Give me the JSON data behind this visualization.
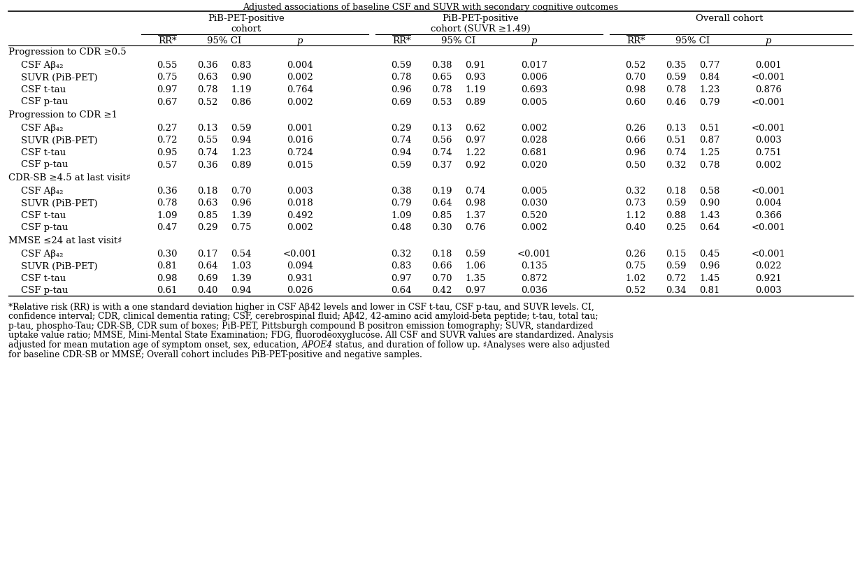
{
  "title": "Adjusted associations of baseline CSF and SUVR with secondary cognitive outcomes",
  "sections": [
    {
      "header": "Progression to CDR ≥0.5",
      "rows": [
        {
          "label": "CSF Aβ₄₂",
          "data": [
            "0.55",
            "0.36",
            "0.83",
            "0.004",
            "0.59",
            "0.38",
            "0.91",
            "0.017",
            "0.52",
            "0.35",
            "0.77",
            "0.001"
          ]
        },
        {
          "label": "SUVR (PiB-PET)",
          "data": [
            "0.75",
            "0.63",
            "0.90",
            "0.002",
            "0.78",
            "0.65",
            "0.93",
            "0.006",
            "0.70",
            "0.59",
            "0.84",
            "<0.001"
          ]
        },
        {
          "label": "CSF t-tau",
          "data": [
            "0.97",
            "0.78",
            "1.19",
            "0.764",
            "0.96",
            "0.78",
            "1.19",
            "0.693",
            "0.98",
            "0.78",
            "1.23",
            "0.876"
          ]
        },
        {
          "label": "CSF p-tau",
          "data": [
            "0.67",
            "0.52",
            "0.86",
            "0.002",
            "0.69",
            "0.53",
            "0.89",
            "0.005",
            "0.60",
            "0.46",
            "0.79",
            "<0.001"
          ]
        }
      ]
    },
    {
      "header": "Progression to CDR ≥1",
      "rows": [
        {
          "label": "CSF Aβ₄₂",
          "data": [
            "0.27",
            "0.13",
            "0.59",
            "0.001",
            "0.29",
            "0.13",
            "0.62",
            "0.002",
            "0.26",
            "0.13",
            "0.51",
            "<0.001"
          ]
        },
        {
          "label": "SUVR (PiB-PET)",
          "data": [
            "0.72",
            "0.55",
            "0.94",
            "0.016",
            "0.74",
            "0.56",
            "0.97",
            "0.028",
            "0.66",
            "0.51",
            "0.87",
            "0.003"
          ]
        },
        {
          "label": "CSF t-tau",
          "data": [
            "0.95",
            "0.74",
            "1.23",
            "0.724",
            "0.94",
            "0.74",
            "1.22",
            "0.681",
            "0.96",
            "0.74",
            "1.25",
            "0.751"
          ]
        },
        {
          "label": "CSF p-tau",
          "data": [
            "0.57",
            "0.36",
            "0.89",
            "0.015",
            "0.59",
            "0.37",
            "0.92",
            "0.020",
            "0.50",
            "0.32",
            "0.78",
            "0.002"
          ]
        }
      ]
    },
    {
      "header": "CDR-SB ≥4.5 at last visit♯",
      "rows": [
        {
          "label": "CSF Aβ₄₂",
          "data": [
            "0.36",
            "0.18",
            "0.70",
            "0.003",
            "0.38",
            "0.19",
            "0.74",
            "0.005",
            "0.32",
            "0.18",
            "0.58",
            "<0.001"
          ]
        },
        {
          "label": "SUVR (PiB-PET)",
          "data": [
            "0.78",
            "0.63",
            "0.96",
            "0.018",
            "0.79",
            "0.64",
            "0.98",
            "0.030",
            "0.73",
            "0.59",
            "0.90",
            "0.004"
          ]
        },
        {
          "label": "CSF t-tau",
          "data": [
            "1.09",
            "0.85",
            "1.39",
            "0.492",
            "1.09",
            "0.85",
            "1.37",
            "0.520",
            "1.12",
            "0.88",
            "1.43",
            "0.366"
          ]
        },
        {
          "label": "CSF p-tau",
          "data": [
            "0.47",
            "0.29",
            "0.75",
            "0.002",
            "0.48",
            "0.30",
            "0.76",
            "0.002",
            "0.40",
            "0.25",
            "0.64",
            "<0.001"
          ]
        }
      ]
    },
    {
      "header": "MMSE ≤24 at last visit♯",
      "rows": [
        {
          "label": "CSF Aβ₄₂",
          "data": [
            "0.30",
            "0.17",
            "0.54",
            "<0.001",
            "0.32",
            "0.18",
            "0.59",
            "<0.001",
            "0.26",
            "0.15",
            "0.45",
            "<0.001"
          ]
        },
        {
          "label": "SUVR (PiB-PET)",
          "data": [
            "0.81",
            "0.64",
            "1.03",
            "0.094",
            "0.83",
            "0.66",
            "1.06",
            "0.135",
            "0.75",
            "0.59",
            "0.96",
            "0.022"
          ]
        },
        {
          "label": "CSF t-tau",
          "data": [
            "0.98",
            "0.69",
            "1.39",
            "0.931",
            "0.97",
            "0.70",
            "1.35",
            "0.872",
            "1.02",
            "0.72",
            "1.45",
            "0.921"
          ]
        },
        {
          "label": "CSF p-tau",
          "data": [
            "0.61",
            "0.40",
            "0.94",
            "0.026",
            "0.64",
            "0.42",
            "0.97",
            "0.036",
            "0.52",
            "0.34",
            "0.81",
            "0.003"
          ]
        }
      ]
    }
  ],
  "footnote_parts": [
    {
      "text": "*Relative risk (RR) is with a one standard deviation higher in CSF Aβ",
      "italic": false
    },
    {
      "text": "42",
      "italic": false,
      "sub": true
    },
    {
      "text": " levels and lower in CSF t-tau, CSF p-tau, and SUVR levels. CI,",
      "italic": false
    },
    {
      "text": "\nconfidence interval; CDR, clinical dementia rating; CSF, cerebrospinal fluid; Aβ",
      "italic": false
    },
    {
      "text": "42",
      "italic": false,
      "sub": true
    },
    {
      "text": ", 42-amino acid amyloid-beta peptide; t-tau, total tau;",
      "italic": false
    },
    {
      "text": "\np-tau, phospho-Tau; CDR-SB, CDR sum of boxes; PiB-PET, Pittsburgh compound B positron emission tomography; SUVR, standardized",
      "italic": false
    },
    {
      "text": "\nuptake value ratio; MMSE, Mini-Mental State Examination; FDG, fluorodeoxyglucose. All CSF and SUVR values are standardized. Analysis",
      "italic": false
    },
    {
      "text": "\nadjusted for mean mutation age of symptom onset, sex, education, ",
      "italic": false
    },
    {
      "text": "APOE4",
      "italic": true
    },
    {
      "text": " status, and duration of follow up. ♯Analyses were also adjusted",
      "italic": false
    },
    {
      "text": "\nfor baseline CDR-SB or MMSE; Overall cohort includes PiB-PET-positive and negative samples.",
      "italic": false
    }
  ],
  "title_fontsize": 9.0,
  "header_fontsize": 9.5,
  "body_fontsize": 9.5,
  "footnote_fontsize": 8.8
}
